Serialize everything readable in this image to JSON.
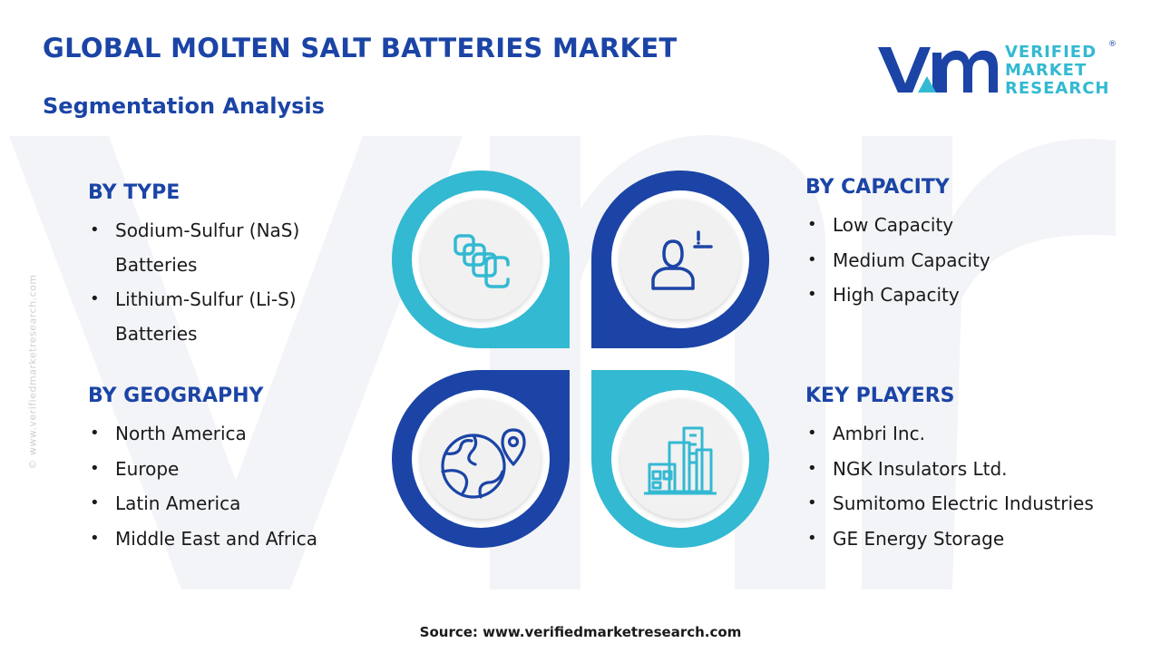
{
  "header": {
    "title": "GLOBAL MOLTEN SALT BATTERIES MARKET",
    "subtitle": "Segmentation Analysis"
  },
  "logo": {
    "line1": "VERIFIED",
    "line2": "MARKET",
    "line3": "RESEARCH",
    "registered": "®"
  },
  "side_watermark": "© www.verifiedmarketresearch.com",
  "segments": {
    "type": {
      "title": "BY TYPE",
      "items": [
        "Sodium-Sulfur (NaS)",
        "Batteries",
        "Lithium-Sulfur (Li-S)",
        "Batteries"
      ]
    },
    "geography": {
      "title": "BY GEOGRAPHY",
      "items": [
        "North America",
        "Europe",
        "Latin America",
        "Middle East and Africa"
      ]
    },
    "capacity": {
      "title": "BY CAPACITY",
      "items": [
        "Low Capacity",
        "Medium Capacity",
        "High Capacity"
      ]
    },
    "key_players": {
      "title": "KEY PLAYERS",
      "items": [
        "Ambri Inc.",
        "NGK Insulators Ltd.",
        "Sumitomo Electric Industries",
        "GE Energy Storage"
      ]
    }
  },
  "icons": {
    "top_left": "battery-cells-icon",
    "top_right": "user-profile-icon",
    "bottom_left": "globe-location-icon",
    "bottom_right": "city-buildings-icon"
  },
  "colors": {
    "navy": "#1b44a6",
    "cyan": "#33b9d2",
    "text": "#1a1a1a"
  },
  "source": "Source: www.verifiedmarketresearch.com"
}
